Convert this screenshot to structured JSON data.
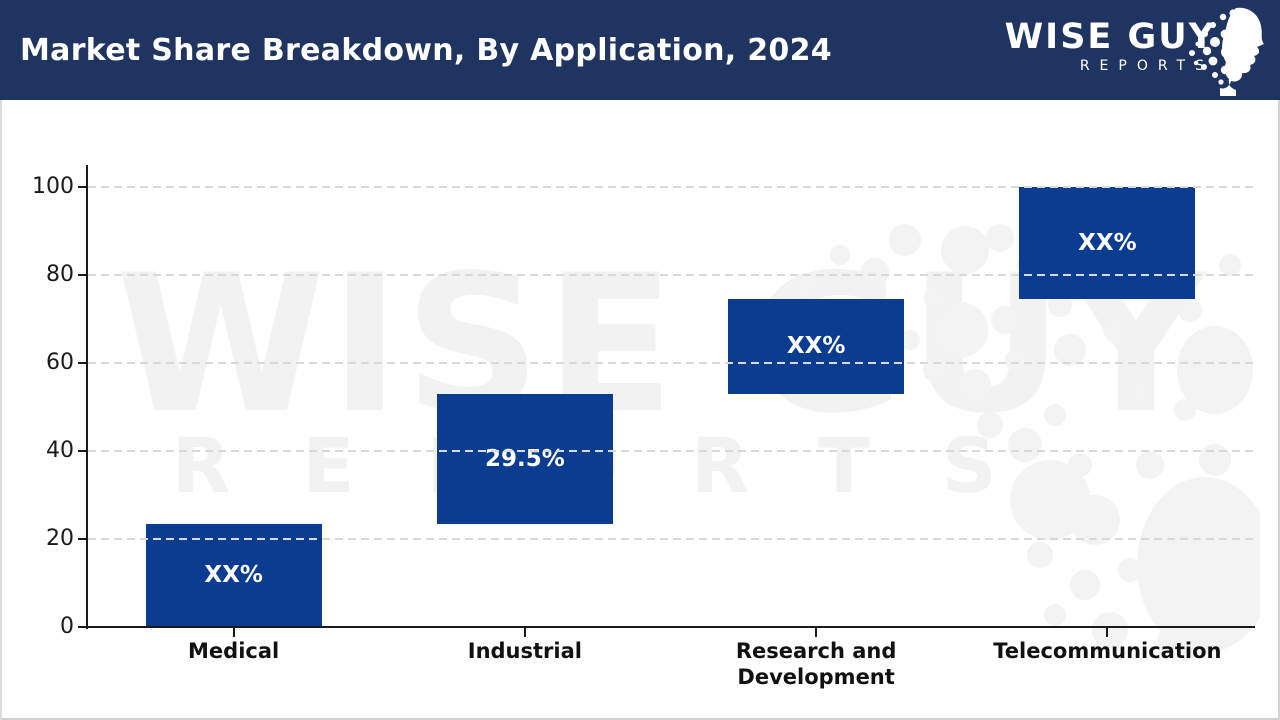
{
  "colors": {
    "header_bg": "#1f3460",
    "bar": "#0a3c8f",
    "axis": "#1a1a1a",
    "grid": "#d9d9d9",
    "watermark": "#f2f2f2",
    "label_on_bar": "#ffffff"
  },
  "header": {
    "title": "Market Share Breakdown, By Application, 2024",
    "logo_line1": "WISE GUY",
    "logo_line2": "REPORTS"
  },
  "watermark": {
    "line1": "WISE GUY",
    "line2": "REPORTS"
  },
  "chart_data": {
    "type": "bar",
    "subtype": "floating-waterfall",
    "title": "Market Share Breakdown, By Application, 2024",
    "categories": [
      "Medical",
      "Industrial",
      "Research and Development",
      "Telecommunication"
    ],
    "segments": [
      {
        "category": "Medical",
        "start": 0,
        "end": 23.5,
        "value": 23.5,
        "label": "XX%"
      },
      {
        "category": "Industrial",
        "start": 23.5,
        "end": 53,
        "value": 29.5,
        "label": "29.5%"
      },
      {
        "category": "Research and Development",
        "start": 53,
        "end": 74.5,
        "value": 21.5,
        "label": "XX%"
      },
      {
        "category": "Telecommunication",
        "start": 74.5,
        "end": 100,
        "value": 25.5,
        "label": "XX%"
      }
    ],
    "yticks": [
      0,
      20,
      40,
      60,
      80,
      100
    ],
    "ylim": [
      0,
      105
    ],
    "xlabel": "",
    "ylabel": "",
    "grid": "horizontal-dashed",
    "legend": "none",
    "bar_color": "#0a3c8f"
  }
}
